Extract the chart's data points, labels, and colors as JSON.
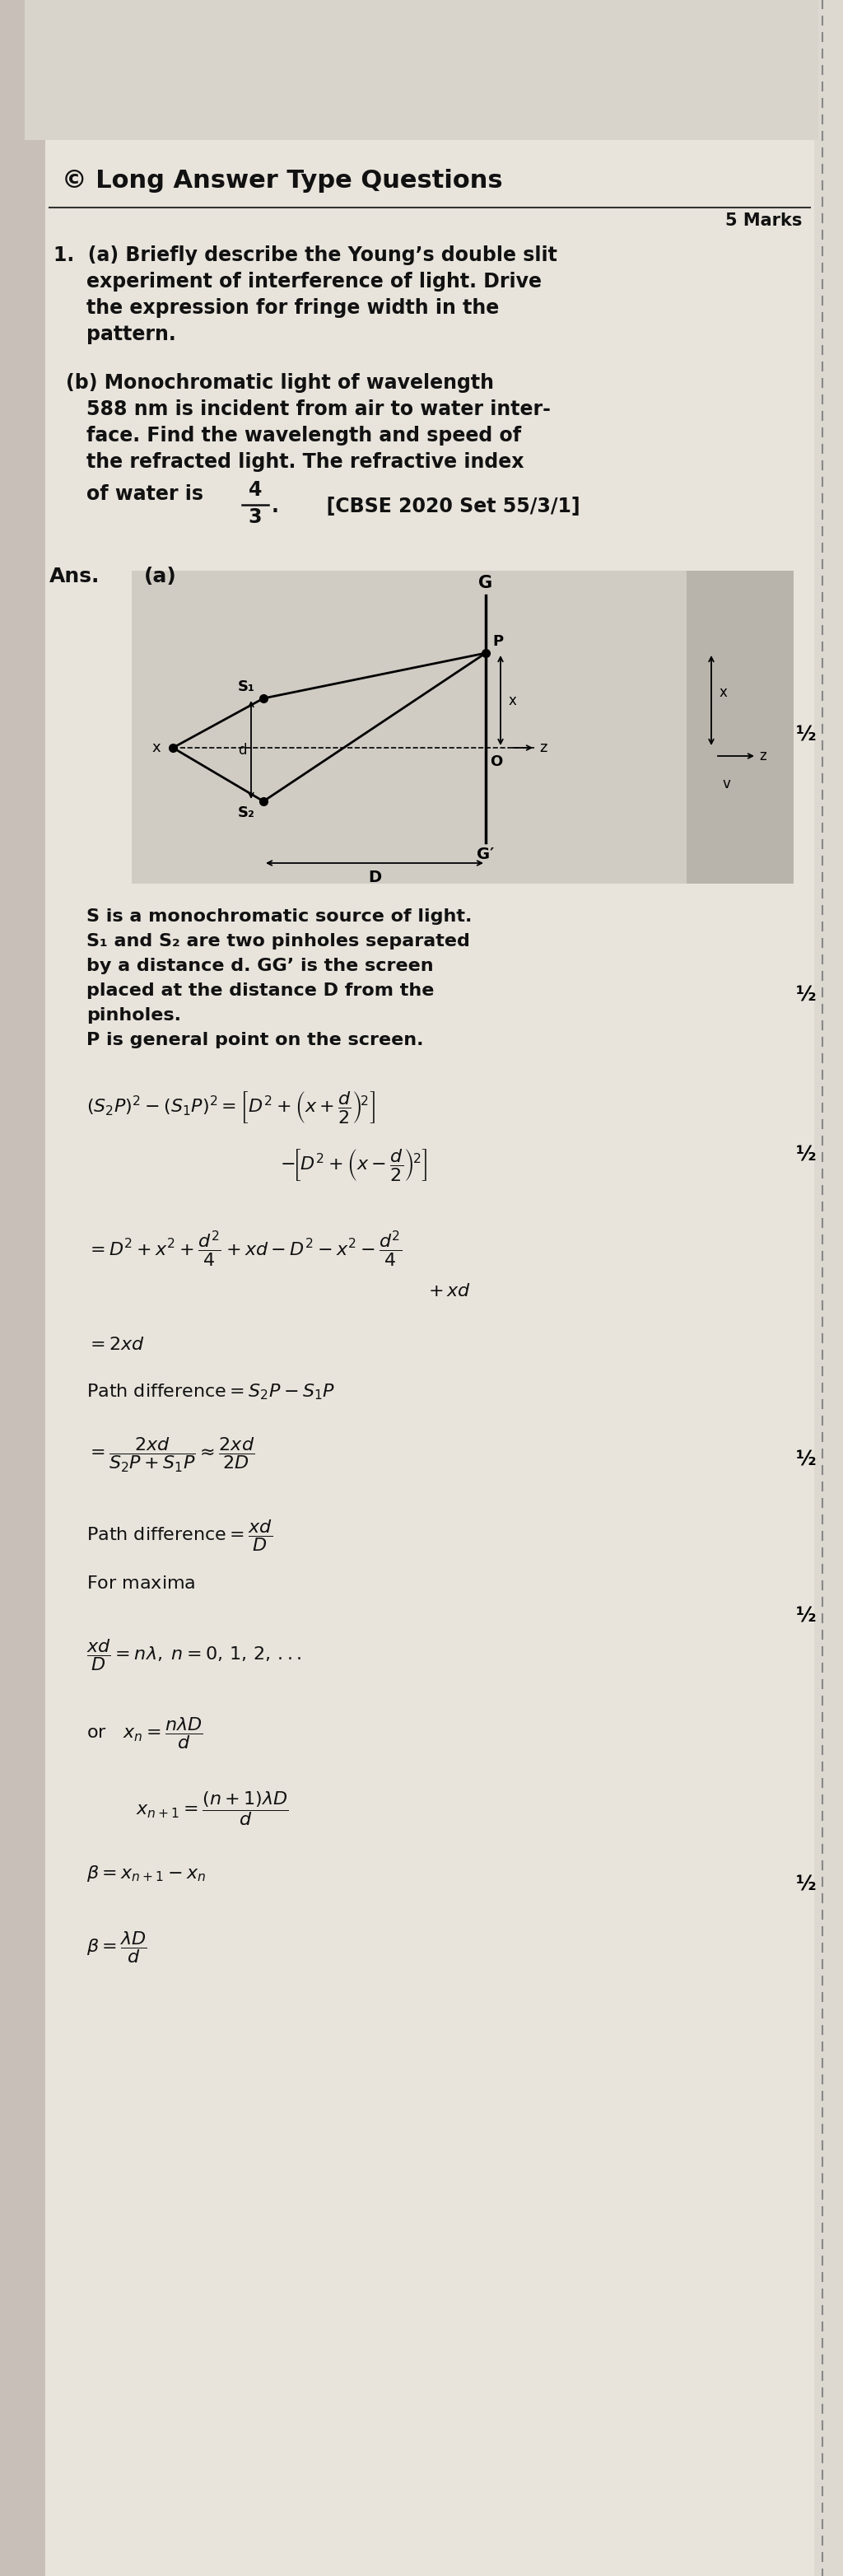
{
  "bg_color": "#ddd8d0",
  "page_bg": "#e8e4dc",
  "left_strip_color": "#c0b8b0",
  "right_border_color": "#888880",
  "title": "© Long Answer Type Questions",
  "marks": "5 Marks",
  "half": "½",
  "fig_w": 10.24,
  "fig_h": 31.28
}
